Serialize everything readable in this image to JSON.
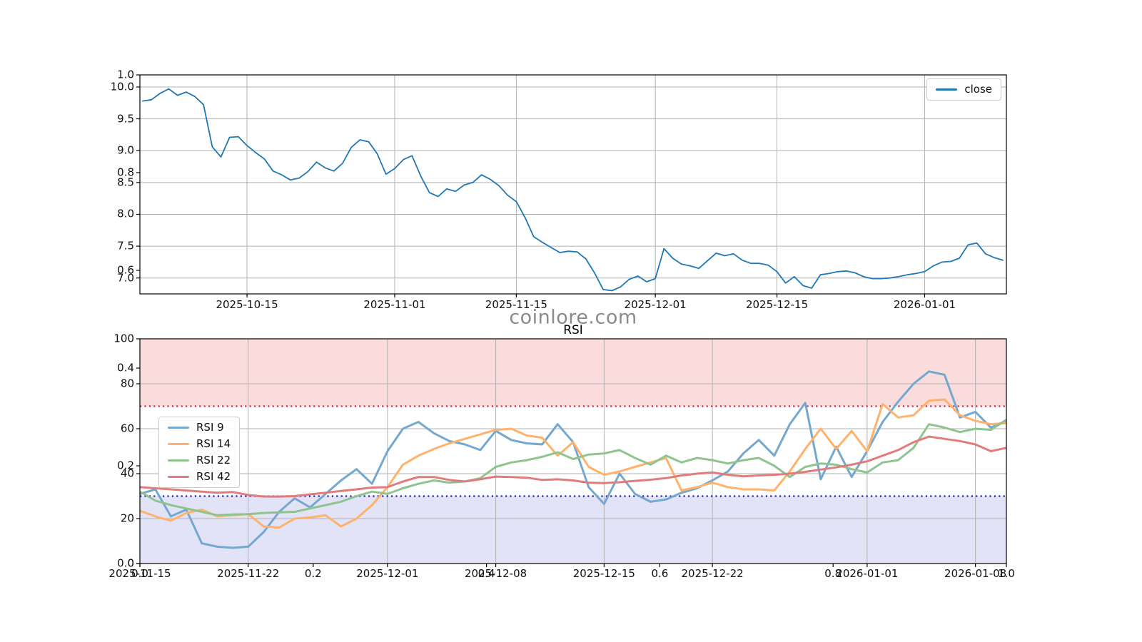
{
  "watermark": "coinlore.com",
  "rsi_panel_title": "RSI",
  "unit_axis": {
    "y_labels": [
      "1.0",
      "0.8",
      "0.6",
      "0.4",
      "0.2",
      "0.0"
    ],
    "x_labels": [
      "0.0",
      "0.2",
      "0.4",
      "0.6",
      "0.8",
      "1.0"
    ]
  },
  "colors": {
    "grid": "#b2b2b2",
    "spine": "#000000",
    "overbought_band": "#fbdcdc",
    "oversold_band": "#e3e3f7",
    "overbought_line": "#d42a3d",
    "oversold_line": "#1c1cb0",
    "watermark": "#8b8b8b"
  },
  "chart_data": [
    {
      "type": "line",
      "title": "",
      "ylim": [
        6.75,
        10.19
      ],
      "yticks": [
        {
          "label": "7.0",
          "v": 7.0
        },
        {
          "label": "7.5",
          "v": 7.5
        },
        {
          "label": "8.0",
          "v": 8.0
        },
        {
          "label": "8.5",
          "v": 8.5
        },
        {
          "label": "9.0",
          "v": 9.0
        },
        {
          "label": "9.5",
          "v": 9.5
        },
        {
          "label": "10.0",
          "v": 10.0
        }
      ],
      "xticks": [
        {
          "label": "2025-10-15",
          "day": 12
        },
        {
          "label": "2025-11-01",
          "day": 29
        },
        {
          "label": "2025-11-15",
          "day": 43
        },
        {
          "label": "2025-12-01",
          "day": 59
        },
        {
          "label": "2025-12-15",
          "day": 73
        },
        {
          "label": "2026-01-01",
          "day": 90
        }
      ],
      "legend_position": "upper right",
      "grid": true,
      "series": [
        {
          "name": "close",
          "color": "#1f77b4",
          "width": 1.8,
          "values": [
            9.78,
            9.8,
            9.9,
            9.97,
            9.87,
            9.92,
            9.85,
            9.72,
            9.06,
            8.9,
            9.21,
            9.22,
            9.08,
            8.97,
            8.87,
            8.68,
            8.62,
            8.54,
            8.57,
            8.67,
            8.82,
            8.73,
            8.68,
            8.8,
            9.05,
            9.17,
            9.14,
            8.95,
            8.63,
            8.72,
            8.86,
            8.92,
            8.6,
            8.34,
            8.28,
            8.4,
            8.36,
            8.46,
            8.5,
            8.62,
            8.55,
            8.45,
            8.3,
            8.2,
            7.95,
            7.65,
            7.56,
            7.48,
            7.4,
            7.42,
            7.41,
            7.3,
            7.08,
            6.82,
            6.8,
            6.86,
            6.98,
            7.03,
            6.94,
            6.99,
            7.46,
            7.31,
            7.22,
            7.19,
            7.15,
            7.27,
            7.39,
            7.35,
            7.38,
            7.28,
            7.23,
            7.23,
            7.2,
            7.1,
            6.92,
            7.02,
            6.88,
            6.84,
            7.05,
            7.07,
            7.1,
            7.11,
            7.08,
            7.02,
            6.99,
            6.99,
            7.0,
            7.02,
            7.05,
            7.07,
            7.1,
            7.19,
            7.25,
            7.26,
            7.31,
            7.52,
            7.55,
            7.38,
            7.32,
            7.28
          ]
        }
      ]
    },
    {
      "type": "line",
      "title": "RSI",
      "ylim": [
        0,
        100
      ],
      "yticks": [
        {
          "label": "0",
          "v": 0
        },
        {
          "label": "20",
          "v": 20
        },
        {
          "label": "40",
          "v": 40
        },
        {
          "label": "60",
          "v": 60
        },
        {
          "label": "80",
          "v": 80
        },
        {
          "label": "100",
          "v": 100
        }
      ],
      "xticks": [
        {
          "label": "2025-11-15",
          "day": 0
        },
        {
          "label": "2025-11-22",
          "day": 7
        },
        {
          "label": "2025-12-01",
          "day": 16
        },
        {
          "label": "2025-12-08",
          "day": 23
        },
        {
          "label": "2025-12-15",
          "day": 30
        },
        {
          "label": "2025-12-22",
          "day": 37
        },
        {
          "label": "2026-01-01",
          "day": 47
        },
        {
          "label": "2026-01-08",
          "day": 54
        }
      ],
      "legend_position": "center left",
      "grid": true,
      "bands": [
        {
          "from": 70,
          "to": 100,
          "name": "overbought"
        },
        {
          "from": 0,
          "to": 30,
          "name": "oversold"
        }
      ],
      "hlines": [
        {
          "v": 70,
          "name": "overbought-threshold"
        },
        {
          "v": 30,
          "name": "oversold-threshold"
        }
      ],
      "series": [
        {
          "name": "RSI 9",
          "color": "#74a8ce",
          "width": 3,
          "values": [
            31,
            33,
            21,
            24,
            9,
            7.5,
            7,
            7.5,
            14,
            23,
            29,
            25,
            31,
            37,
            42,
            35.5,
            50,
            60,
            63,
            58,
            54.5,
            53,
            50.5,
            59,
            55,
            53.5,
            53,
            62,
            54,
            34,
            26.5,
            40,
            31,
            27.5,
            28.5,
            31.5,
            33.5,
            37,
            41,
            49,
            55,
            48,
            62,
            71.5,
            37.5,
            52,
            38.5,
            50,
            63,
            72,
            80,
            85.5,
            84,
            65,
            67.5,
            60.5,
            63.5
          ]
        },
        {
          "name": "RSI 14",
          "color": "#ffb26b",
          "width": 3,
          "values": [
            23.5,
            21,
            19,
            22.5,
            24,
            21,
            21.5,
            22,
            16.5,
            16,
            20,
            20.5,
            21.5,
            16.5,
            20,
            26,
            34,
            44,
            48,
            51,
            53.5,
            55.5,
            57.5,
            59.5,
            60,
            57,
            56,
            48,
            54,
            43,
            39.5,
            41,
            43,
            45,
            47,
            32.5,
            34,
            36,
            34,
            33,
            33,
            32.5,
            41,
            51,
            60,
            51,
            59,
            50,
            71,
            65,
            66,
            72.5,
            73,
            66,
            63.5,
            62,
            62.5
          ]
        },
        {
          "name": "RSI 22",
          "color": "#8fc48f",
          "width": 3,
          "values": [
            32,
            28,
            26,
            24.5,
            23,
            21.5,
            21.8,
            22,
            22.5,
            22.8,
            23,
            24.5,
            26,
            27.5,
            30,
            32,
            31,
            33.5,
            35.5,
            37,
            36,
            36.5,
            38,
            43,
            45,
            46,
            47.5,
            49.5,
            46.5,
            48.5,
            49,
            50.5,
            47,
            44,
            48,
            45,
            47,
            46,
            44.5,
            46,
            47,
            43.5,
            38.5,
            43,
            44.5,
            44,
            42,
            40.5,
            45,
            46,
            51.5,
            62,
            60.5,
            58.5,
            60,
            59.5,
            64
          ]
        },
        {
          "name": "RSI 42",
          "color": "#e17c7c",
          "width": 3,
          "values": [
            34,
            33.5,
            33,
            32.5,
            32,
            31.5,
            31.8,
            30.5,
            29.8,
            29.8,
            30,
            30.8,
            31.5,
            32.3,
            33,
            33.8,
            34,
            36.5,
            38.5,
            38.5,
            37.2,
            36.5,
            37.5,
            38.7,
            38.5,
            38.2,
            37.2,
            37.5,
            37,
            36,
            35.8,
            36.2,
            36.8,
            37.3,
            38,
            39.2,
            40,
            40.5,
            39.5,
            38.8,
            39.2,
            39.5,
            40,
            40.8,
            41.8,
            42.8,
            44,
            45.5,
            48,
            50.5,
            54,
            56.5,
            55.5,
            54.5,
            53,
            50,
            51.5
          ]
        }
      ]
    }
  ]
}
